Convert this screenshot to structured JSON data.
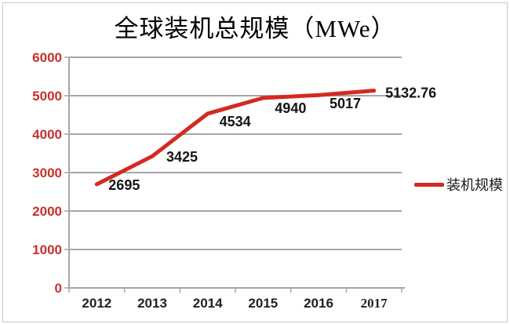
{
  "chart_data": {
    "type": "line",
    "title": "全球装机总规模（MWe）",
    "categories": [
      "2012",
      "2013",
      "2014",
      "2015",
      "2016",
      "2017"
    ],
    "series": [
      {
        "name": "装机规模",
        "values": [
          2695,
          3425,
          4534,
          4940,
          5017,
          5132.76
        ]
      }
    ],
    "data_labels": [
      "2695",
      "3425",
      "4534",
      "4940",
      "5017",
      "5132.76"
    ],
    "xlabel": "",
    "ylabel": "",
    "ylim": [
      0,
      6000
    ],
    "yticks": [
      0,
      1000,
      2000,
      3000,
      4000,
      5000,
      6000
    ],
    "grid": true,
    "legend_position": "right",
    "markers": false,
    "colors": {
      "line": "#d42a1f",
      "ytick_labels": "#c9302b",
      "gridline": "#a6a6a6",
      "data_label": "#141414",
      "xtick_labels": "#212121",
      "title": "#000000",
      "background": "#ffffff",
      "frame_border": "#c9c9c9"
    }
  }
}
